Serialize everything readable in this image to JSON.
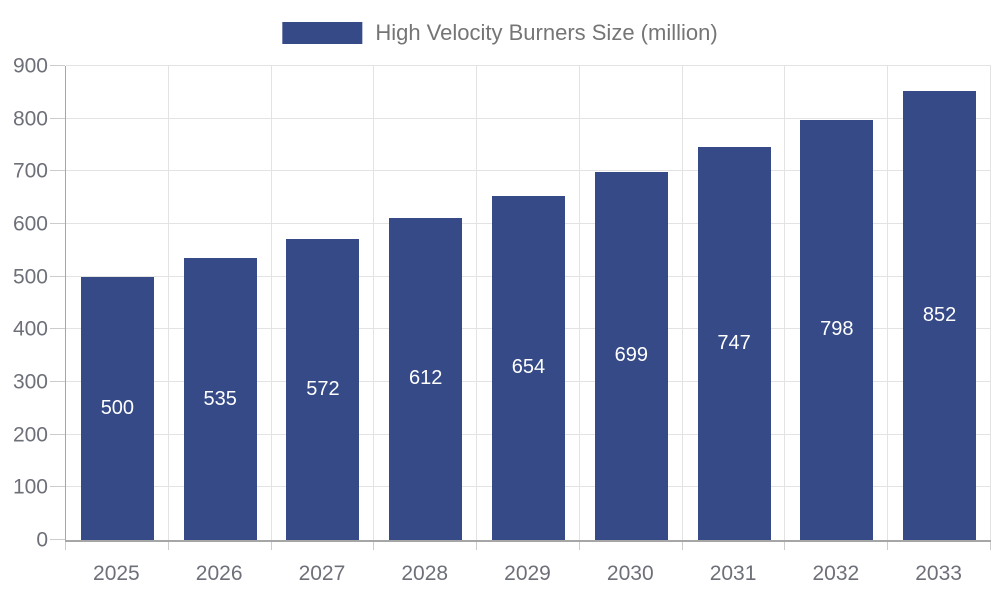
{
  "legend": {
    "label": "High Velocity Burners Size (million)"
  },
  "colors": {
    "bar": "#354a87",
    "bar_value_label": "#ffffff",
    "axis_label_text": "#6e7079",
    "legend_text": "#757575",
    "grid_line": "#e3e3e3",
    "axis_line": "#a6a6a6",
    "tick_line": "#cccccc",
    "background": "#ffffff"
  },
  "chart_data": {
    "type": "bar",
    "title": "High Velocity Burners Size (million)",
    "series": [
      {
        "name": "High Velocity Burners Size (million)",
        "values": [
          500,
          535,
          572,
          612,
          654,
          699,
          747,
          798,
          852
        ]
      }
    ],
    "categories": [
      "2025",
      "2026",
      "2027",
      "2028",
      "2029",
      "2030",
      "2031",
      "2032",
      "2033"
    ],
    "value_labels": [
      500,
      535,
      572,
      612,
      654,
      699,
      747,
      798,
      852
    ],
    "value_label_position": "inside-center",
    "xlabel": "",
    "ylabel": "",
    "ylim": [
      0,
      900
    ],
    "y_ticks": [
      0,
      100,
      200,
      300,
      400,
      500,
      600,
      700,
      800,
      900
    ],
    "grid": true,
    "legend_position": "top-center",
    "bar_color": "#354a87"
  }
}
